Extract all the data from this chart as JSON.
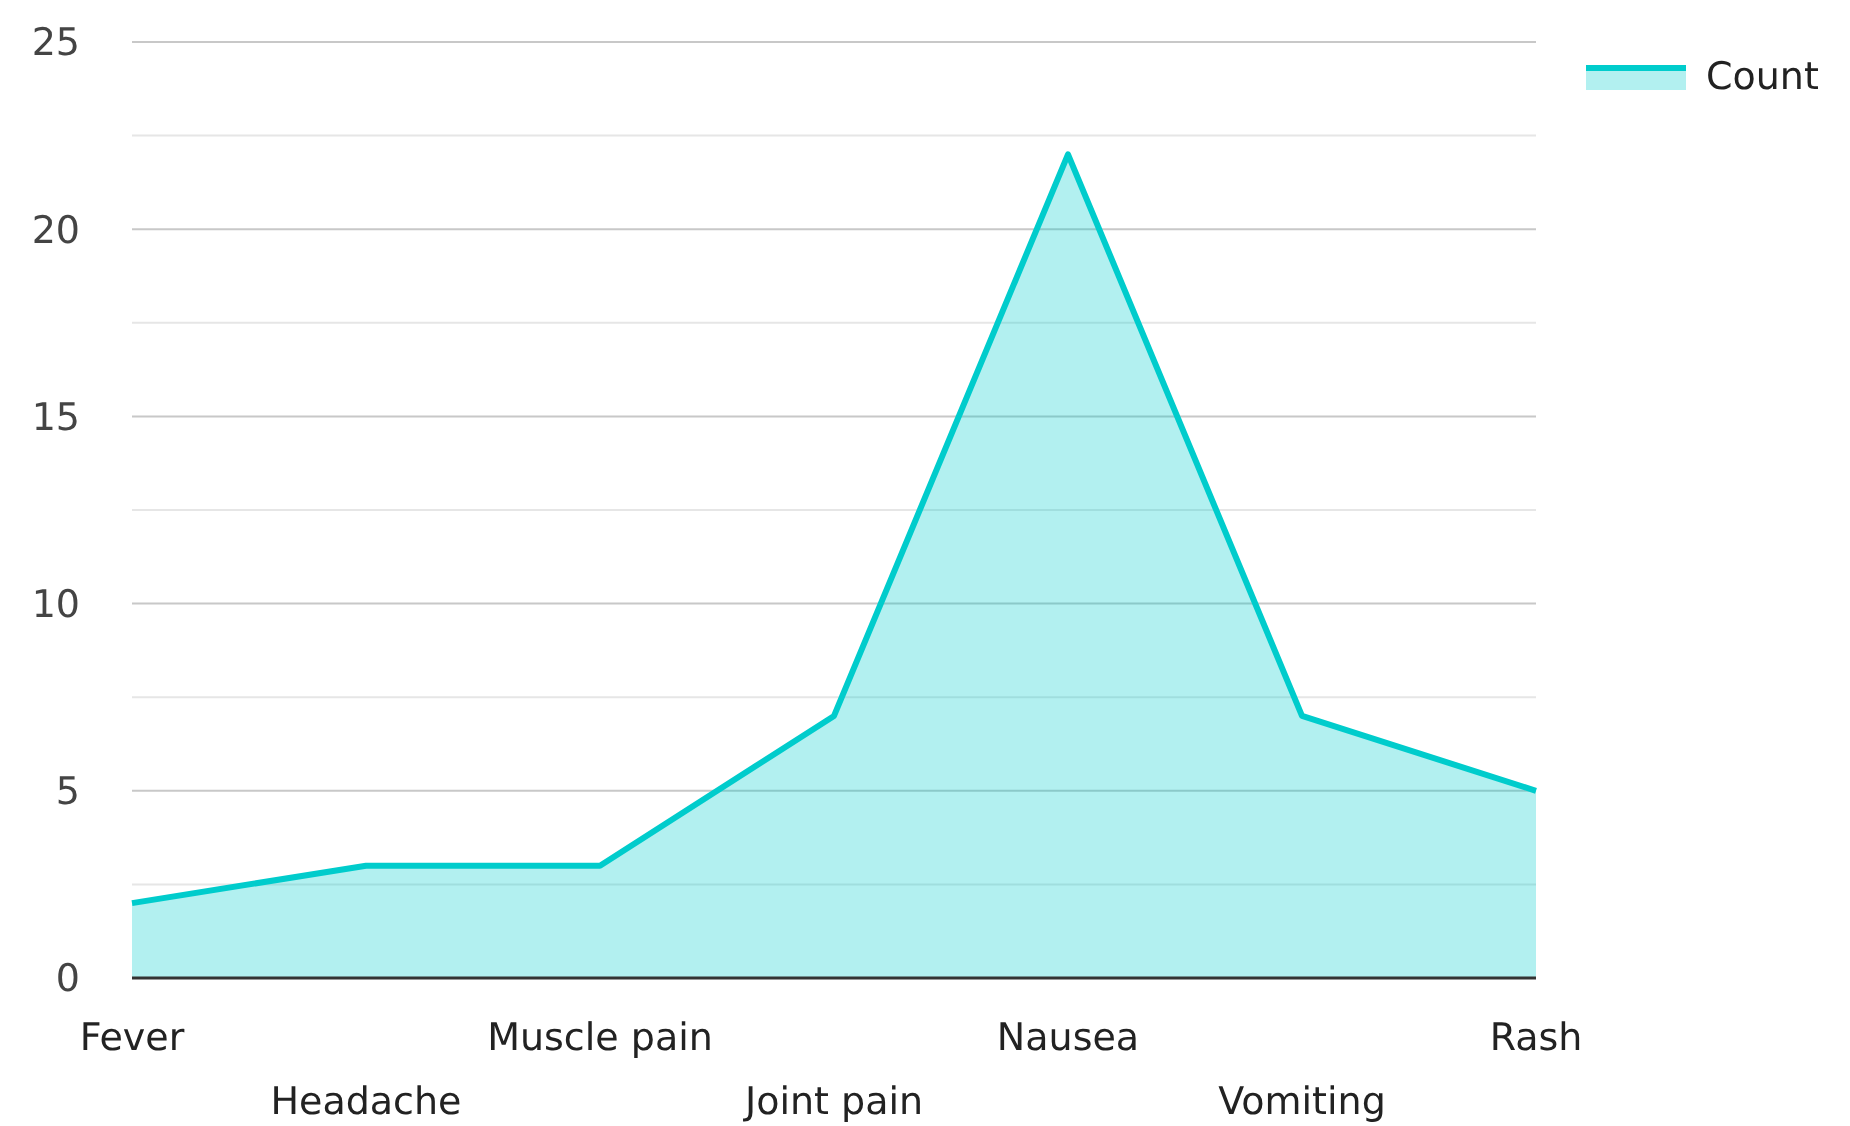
{
  "chart_data": {
    "type": "area",
    "categories": [
      "Fever",
      "Headache",
      "Muscle pain",
      "Joint pain",
      "Nausea",
      "Vomiting",
      "Rash"
    ],
    "series": [
      {
        "name": "Count",
        "color": "#00cccc",
        "values": [
          2,
          3,
          3,
          7,
          22,
          7,
          5
        ]
      }
    ],
    "ylim": [
      0,
      25
    ],
    "yticks": [
      0,
      {
        "value": 2.5,
        "label": null
      },
      5,
      {
        "value": 7.5,
        "label": null
      },
      10,
      {
        "value": 12.5,
        "label": null
      },
      15,
      {
        "value": 17.5,
        "label": null
      },
      20,
      {
        "value": 22.5,
        "label": null
      },
      25
    ],
    "grid": "y",
    "legend": "top right",
    "marker": "none",
    "line_style": "solid"
  }
}
